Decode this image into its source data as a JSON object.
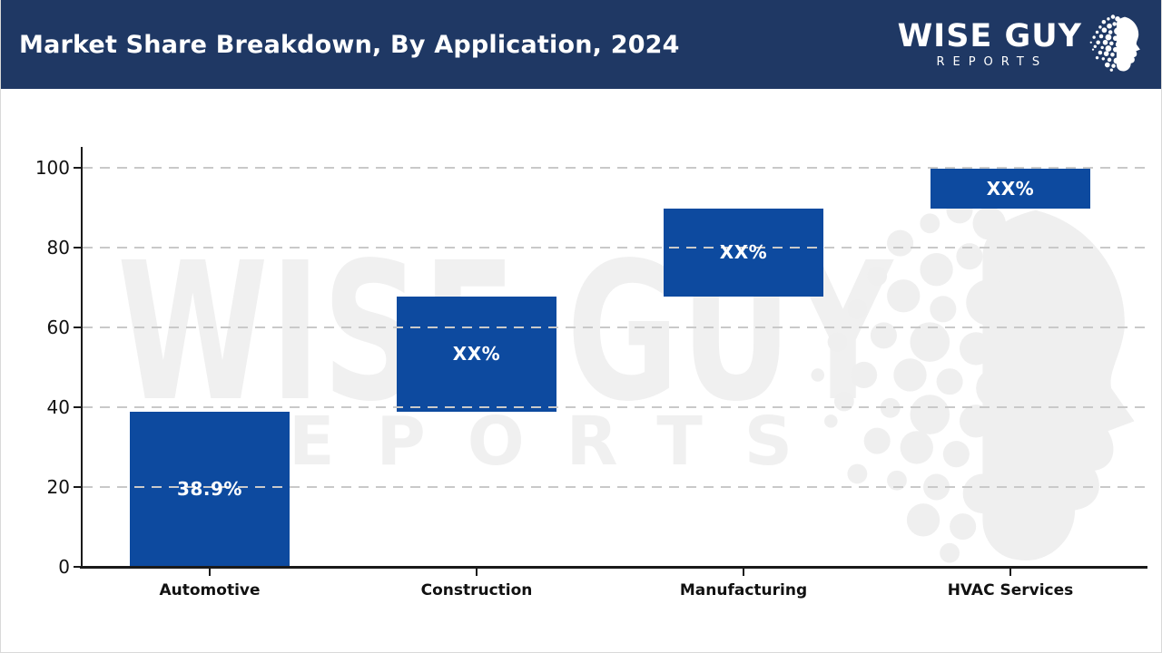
{
  "header": {
    "title": "Market Share Breakdown, By Application, 2024",
    "logo": {
      "wordmark": "WISE GUY",
      "subtext": "REPORTS"
    }
  },
  "watermark": {
    "wordmark": "WISE GUY",
    "subtext": "REPORTS"
  },
  "chart_data": {
    "type": "bar",
    "subtype": "floating-waterfall",
    "title": "Market Share Breakdown, By Application, 2024",
    "categories": [
      "Automotive",
      "Construction",
      "Manufacturing",
      "HVAC Services"
    ],
    "segments": [
      {
        "category": "Automotive",
        "start": 0,
        "end": 38.9,
        "value_label": "38.9%"
      },
      {
        "category": "Construction",
        "start": 38.9,
        "end": 67.8,
        "value_label": "XX%"
      },
      {
        "category": "Manufacturing",
        "start": 67.8,
        "end": 89.8,
        "value_label": "XX%"
      },
      {
        "category": "HVAC Services",
        "start": 89.8,
        "end": 99.8,
        "value_label": "XX%"
      }
    ],
    "xlabel": "",
    "ylabel": "",
    "ylim": [
      0,
      105
    ],
    "yticks": [
      0,
      20,
      40,
      60,
      80,
      100
    ],
    "grid": "horizontal-dashed",
    "legend": "none",
    "bar_color": "#0d4a9f"
  },
  "colors": {
    "header_bg": "#1f3864",
    "bar": "#0d4a9f",
    "grid": "#c9c9c9",
    "axis": "#1a1a1a",
    "watermark": "#f0f0f0",
    "frame": "#d9d9d9",
    "title_text": "#ffffff",
    "label_text": "#111111"
  }
}
